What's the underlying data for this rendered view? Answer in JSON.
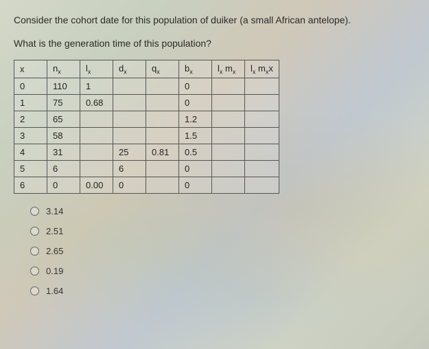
{
  "question": {
    "line1": "Consider the cohort date for this population of duiker (a small African antelope).",
    "line2": "What is the generation time of this population?"
  },
  "table": {
    "headers": {
      "c0": "x",
      "c1_base": "n",
      "c1_sub": "x",
      "c2_base": "l",
      "c2_sub": "x",
      "c3_base": "d",
      "c3_sub": "x",
      "c4_base": "q",
      "c4_sub": "x",
      "c5_base": "b",
      "c5_sub": "x",
      "c6_a_base": "l",
      "c6_a_sub": "x",
      "c6_b_base": " m",
      "c6_b_sub": "x",
      "c7_a_base": "l",
      "c7_a_sub": "x",
      "c7_b_base": " m",
      "c7_b_sub": "x",
      "c7_c": "x"
    },
    "rows": [
      {
        "c0": "0",
        "c1": "110",
        "c2": "1",
        "c3": "",
        "c4": "",
        "c5": "0",
        "c6": "",
        "c7": ""
      },
      {
        "c0": "1",
        "c1": "75",
        "c2": "0.68",
        "c3": "",
        "c4": "",
        "c5": "0",
        "c6": "",
        "c7": ""
      },
      {
        "c0": "2",
        "c1": "65",
        "c2": "",
        "c3": "",
        "c4": "",
        "c5": "1.2",
        "c6": "",
        "c7": ""
      },
      {
        "c0": "3",
        "c1": "58",
        "c2": "",
        "c3": "",
        "c4": "",
        "c5": "1.5",
        "c6": "",
        "c7": ""
      },
      {
        "c0": "4",
        "c1": "31",
        "c2": "",
        "c3": "25",
        "c4": "0.81",
        "c5": "0.5",
        "c6": "",
        "c7": ""
      },
      {
        "c0": "5",
        "c1": "6",
        "c2": "",
        "c3": "6",
        "c4": "",
        "c5": "0",
        "c6": "",
        "c7": ""
      },
      {
        "c0": "6",
        "c1": "0",
        "c2": "0.00",
        "c3": "0",
        "c4": "",
        "c5": "0",
        "c6": "",
        "c7": ""
      }
    ]
  },
  "options": [
    {
      "label": "3.14"
    },
    {
      "label": "2.51"
    },
    {
      "label": "2.65"
    },
    {
      "label": "0.19"
    },
    {
      "label": "1.64"
    }
  ],
  "colors": {
    "text": "#2a2a2a",
    "border": "#555555"
  }
}
